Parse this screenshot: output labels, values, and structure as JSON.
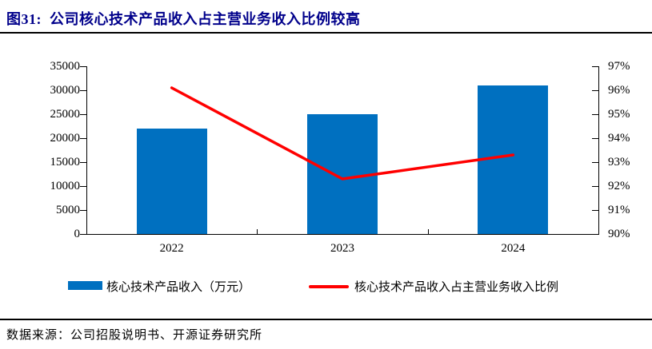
{
  "header": {
    "title": "图31:  公司核心技术产品收入占主营业务收入比例较高"
  },
  "legend": {
    "bar_label": "核心技术产品收入（万元）",
    "line_label": "核心技术产品收入占主营业务收入比例"
  },
  "footer": {
    "source": "数据来源：公司招股说明书、开源证券研究所"
  },
  "colors": {
    "title_text": "#00008B",
    "bar_fill": "#0070C0",
    "line_stroke": "#FF0000",
    "axis": "#000000"
  },
  "chart_data": {
    "type": "bar",
    "subtype": "bar+line-combo",
    "title": "公司核心技术产品收入占主营业务收入比例较高",
    "categories": [
      "2022",
      "2023",
      "2024"
    ],
    "series": [
      {
        "name": "核心技术产品收入（万元）",
        "type": "bar",
        "axis": "left",
        "values": [
          22000,
          25000,
          31000
        ]
      },
      {
        "name": "核心技术产品收入占主营业务收入比例",
        "type": "line",
        "axis": "right",
        "unit": "%",
        "values": [
          96.1,
          92.3,
          93.3
        ]
      }
    ],
    "left_axis": {
      "min": 0,
      "max": 35000,
      "step": 5000,
      "tick_labels": [
        "0",
        "5000",
        "10000",
        "15000",
        "20000",
        "25000",
        "30000",
        "35000"
      ]
    },
    "right_axis": {
      "min": 90,
      "max": 97,
      "step": 1,
      "tick_labels": [
        "90%",
        "91%",
        "92%",
        "93%",
        "94%",
        "95%",
        "96%",
        "97%"
      ]
    },
    "grid": false,
    "legend_position": "bottom"
  }
}
